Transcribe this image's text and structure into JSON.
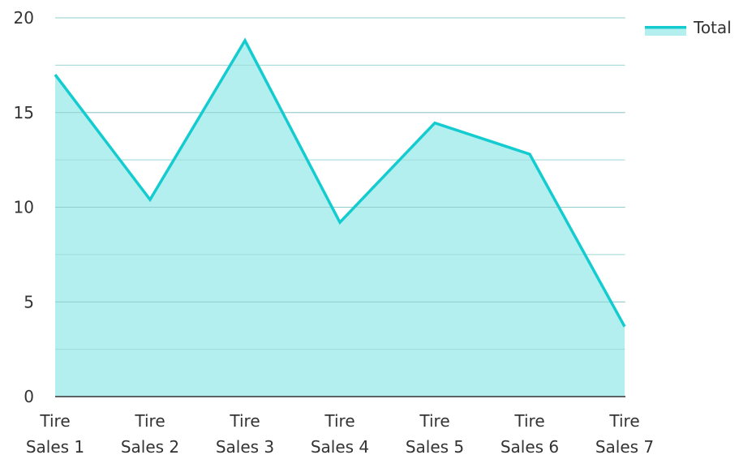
{
  "chart_data": {
    "type": "area",
    "categories": [
      [
        "Tire",
        "Sales 1"
      ],
      [
        "Tire",
        "Sales 2"
      ],
      [
        "Tire",
        "Sales 3"
      ],
      [
        "Tire",
        "Sales 4"
      ],
      [
        "Tire",
        "Sales 5"
      ],
      [
        "Tire",
        "Sales 6"
      ],
      [
        "Tire",
        "Sales 7"
      ]
    ],
    "series": [
      {
        "name": "Total",
        "values": [
          17.0,
          10.4,
          18.8,
          9.2,
          14.45,
          12.8,
          3.7
        ],
        "line_color": "#14ccd0",
        "fill_color": "#b2efee"
      }
    ],
    "ylim": [
      0,
      20
    ],
    "yticks": [
      "0",
      "5",
      "10",
      "15",
      "20"
    ],
    "ytick_values": [
      0,
      5,
      10,
      15,
      20
    ],
    "minor_grid_values": [
      2.5,
      7.5,
      12.5,
      17.5
    ],
    "grid": true,
    "legend_position": "top-right",
    "title": "",
    "xlabel": "",
    "ylabel": ""
  }
}
